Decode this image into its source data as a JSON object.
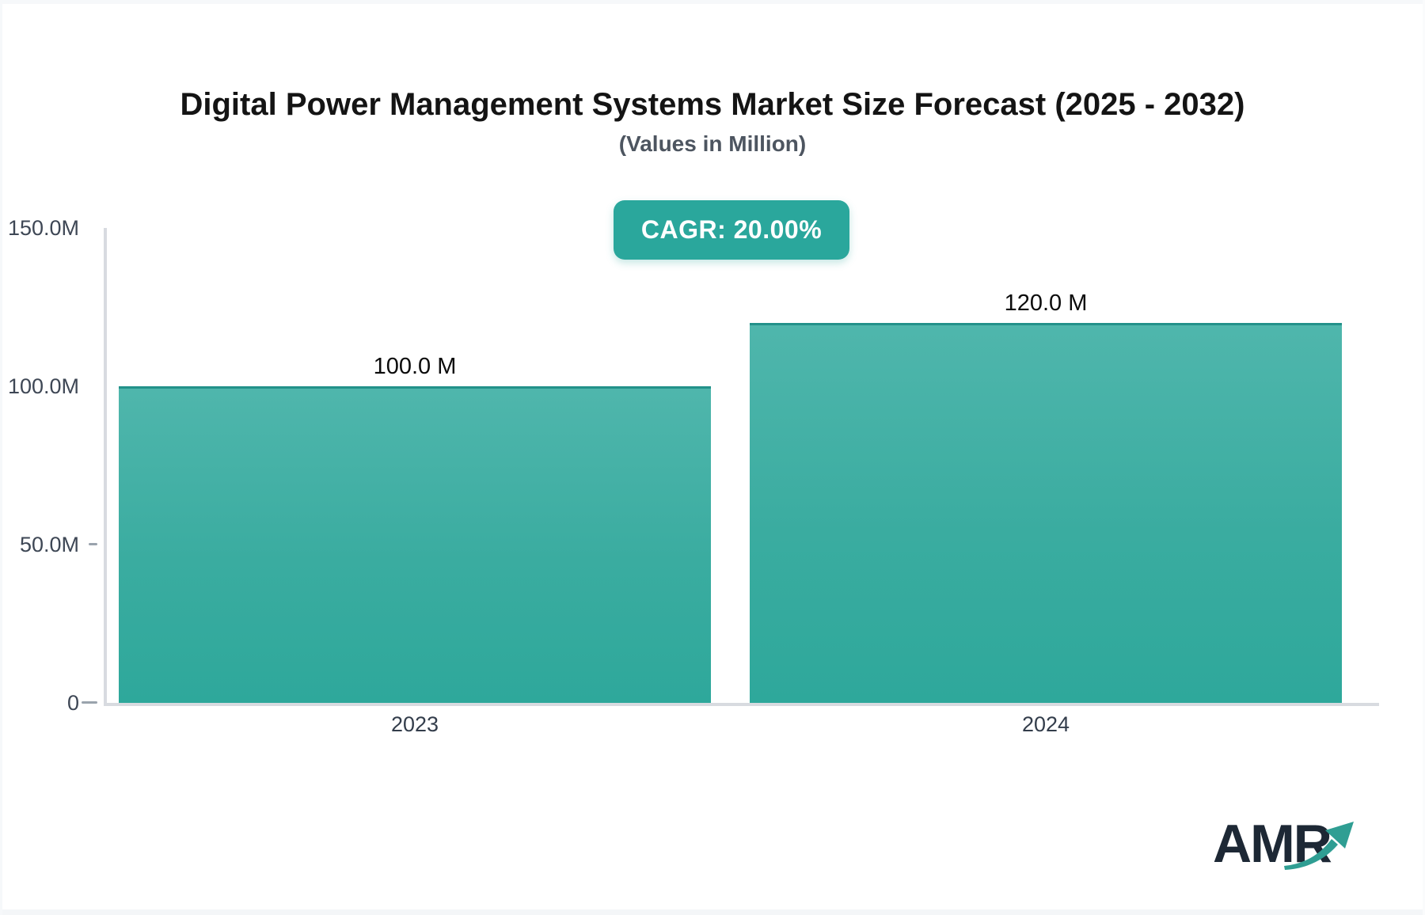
{
  "header": {
    "title": "Digital Power Management Systems Market Size Forecast (2025 - 2032)",
    "subtitle": "(Values in Million)"
  },
  "badge": {
    "label": "CAGR: 20.00%"
  },
  "chart_data": {
    "type": "bar",
    "title": "Digital Power Management Systems Market Size Forecast (2025 - 2032)",
    "subtitle": "(Values in Million)",
    "categories": [
      "2023",
      "2024"
    ],
    "values": [
      100.0,
      120.0
    ],
    "value_labels": [
      "100.0 M",
      "120.0 M"
    ],
    "unit": "Million",
    "xlabel": "",
    "ylabel": "",
    "ylim": [
      0,
      150
    ],
    "yticks": [
      {
        "label": "150.0M",
        "value": 150,
        "dash": false
      },
      {
        "label": "100.0M",
        "value": 100,
        "dash": false
      },
      {
        "label": "50.0M",
        "value": 50,
        "dash": true
      },
      {
        "label": "0",
        "value": 0,
        "dash": true
      }
    ],
    "grid": false,
    "legend": false,
    "cagr": "CAGR: 20.00%"
  },
  "colors": {
    "badge_bg": "#2aa79c",
    "bar_gradient_top": "#4fb6ac",
    "bar_gradient_bottom": "#2ea89b",
    "bar_stroke": "#23918a",
    "axis_line": "#d8dbe0",
    "title_text": "#141414",
    "subtitle_text": "#4d5560",
    "tick_text": "#3e4755",
    "logo_text": "#1d2835",
    "logo_arrow": "#2f9e93"
  },
  "logo": {
    "text": "AMR"
  }
}
